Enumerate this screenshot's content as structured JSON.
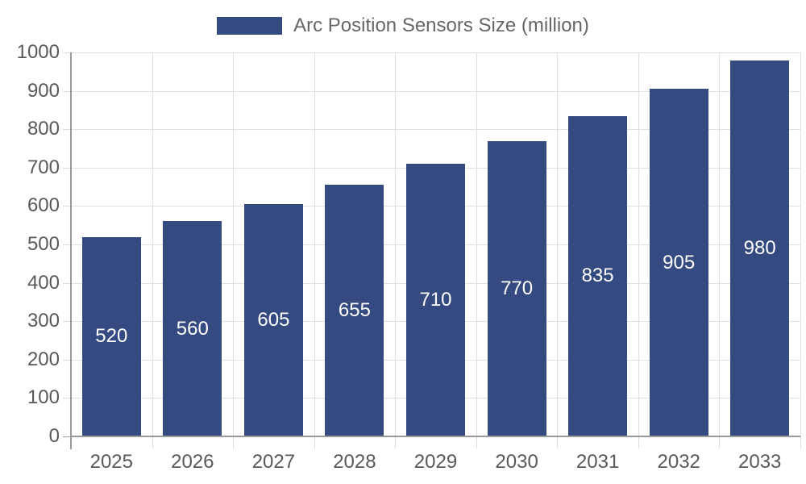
{
  "chart_data": {
    "type": "bar",
    "title": "Arc Position Sensors Size (million)",
    "categories": [
      "2025",
      "2026",
      "2027",
      "2028",
      "2029",
      "2030",
      "2031",
      "2032",
      "2033"
    ],
    "series": [
      {
        "name": "Arc Position Sensors Size (million)",
        "values": [
          520,
          560,
          605,
          655,
          710,
          770,
          835,
          905,
          980
        ]
      }
    ],
    "xlabel": "",
    "ylabel": "",
    "ylim": [
      0,
      1000
    ],
    "yticks": [
      0,
      100,
      200,
      300,
      400,
      500,
      600,
      700,
      800,
      900,
      1000
    ],
    "grid": true,
    "legend_position": "top-center",
    "value_label_position": "inside-center",
    "colors": {
      "bar": "#344a80",
      "axis": "#999999",
      "grid": "#e0e0e0",
      "tick": "#dddddd",
      "axis_label": "#595959",
      "legend_text": "#666666",
      "value_label": "#ffffff",
      "background": "#ffffff"
    }
  }
}
